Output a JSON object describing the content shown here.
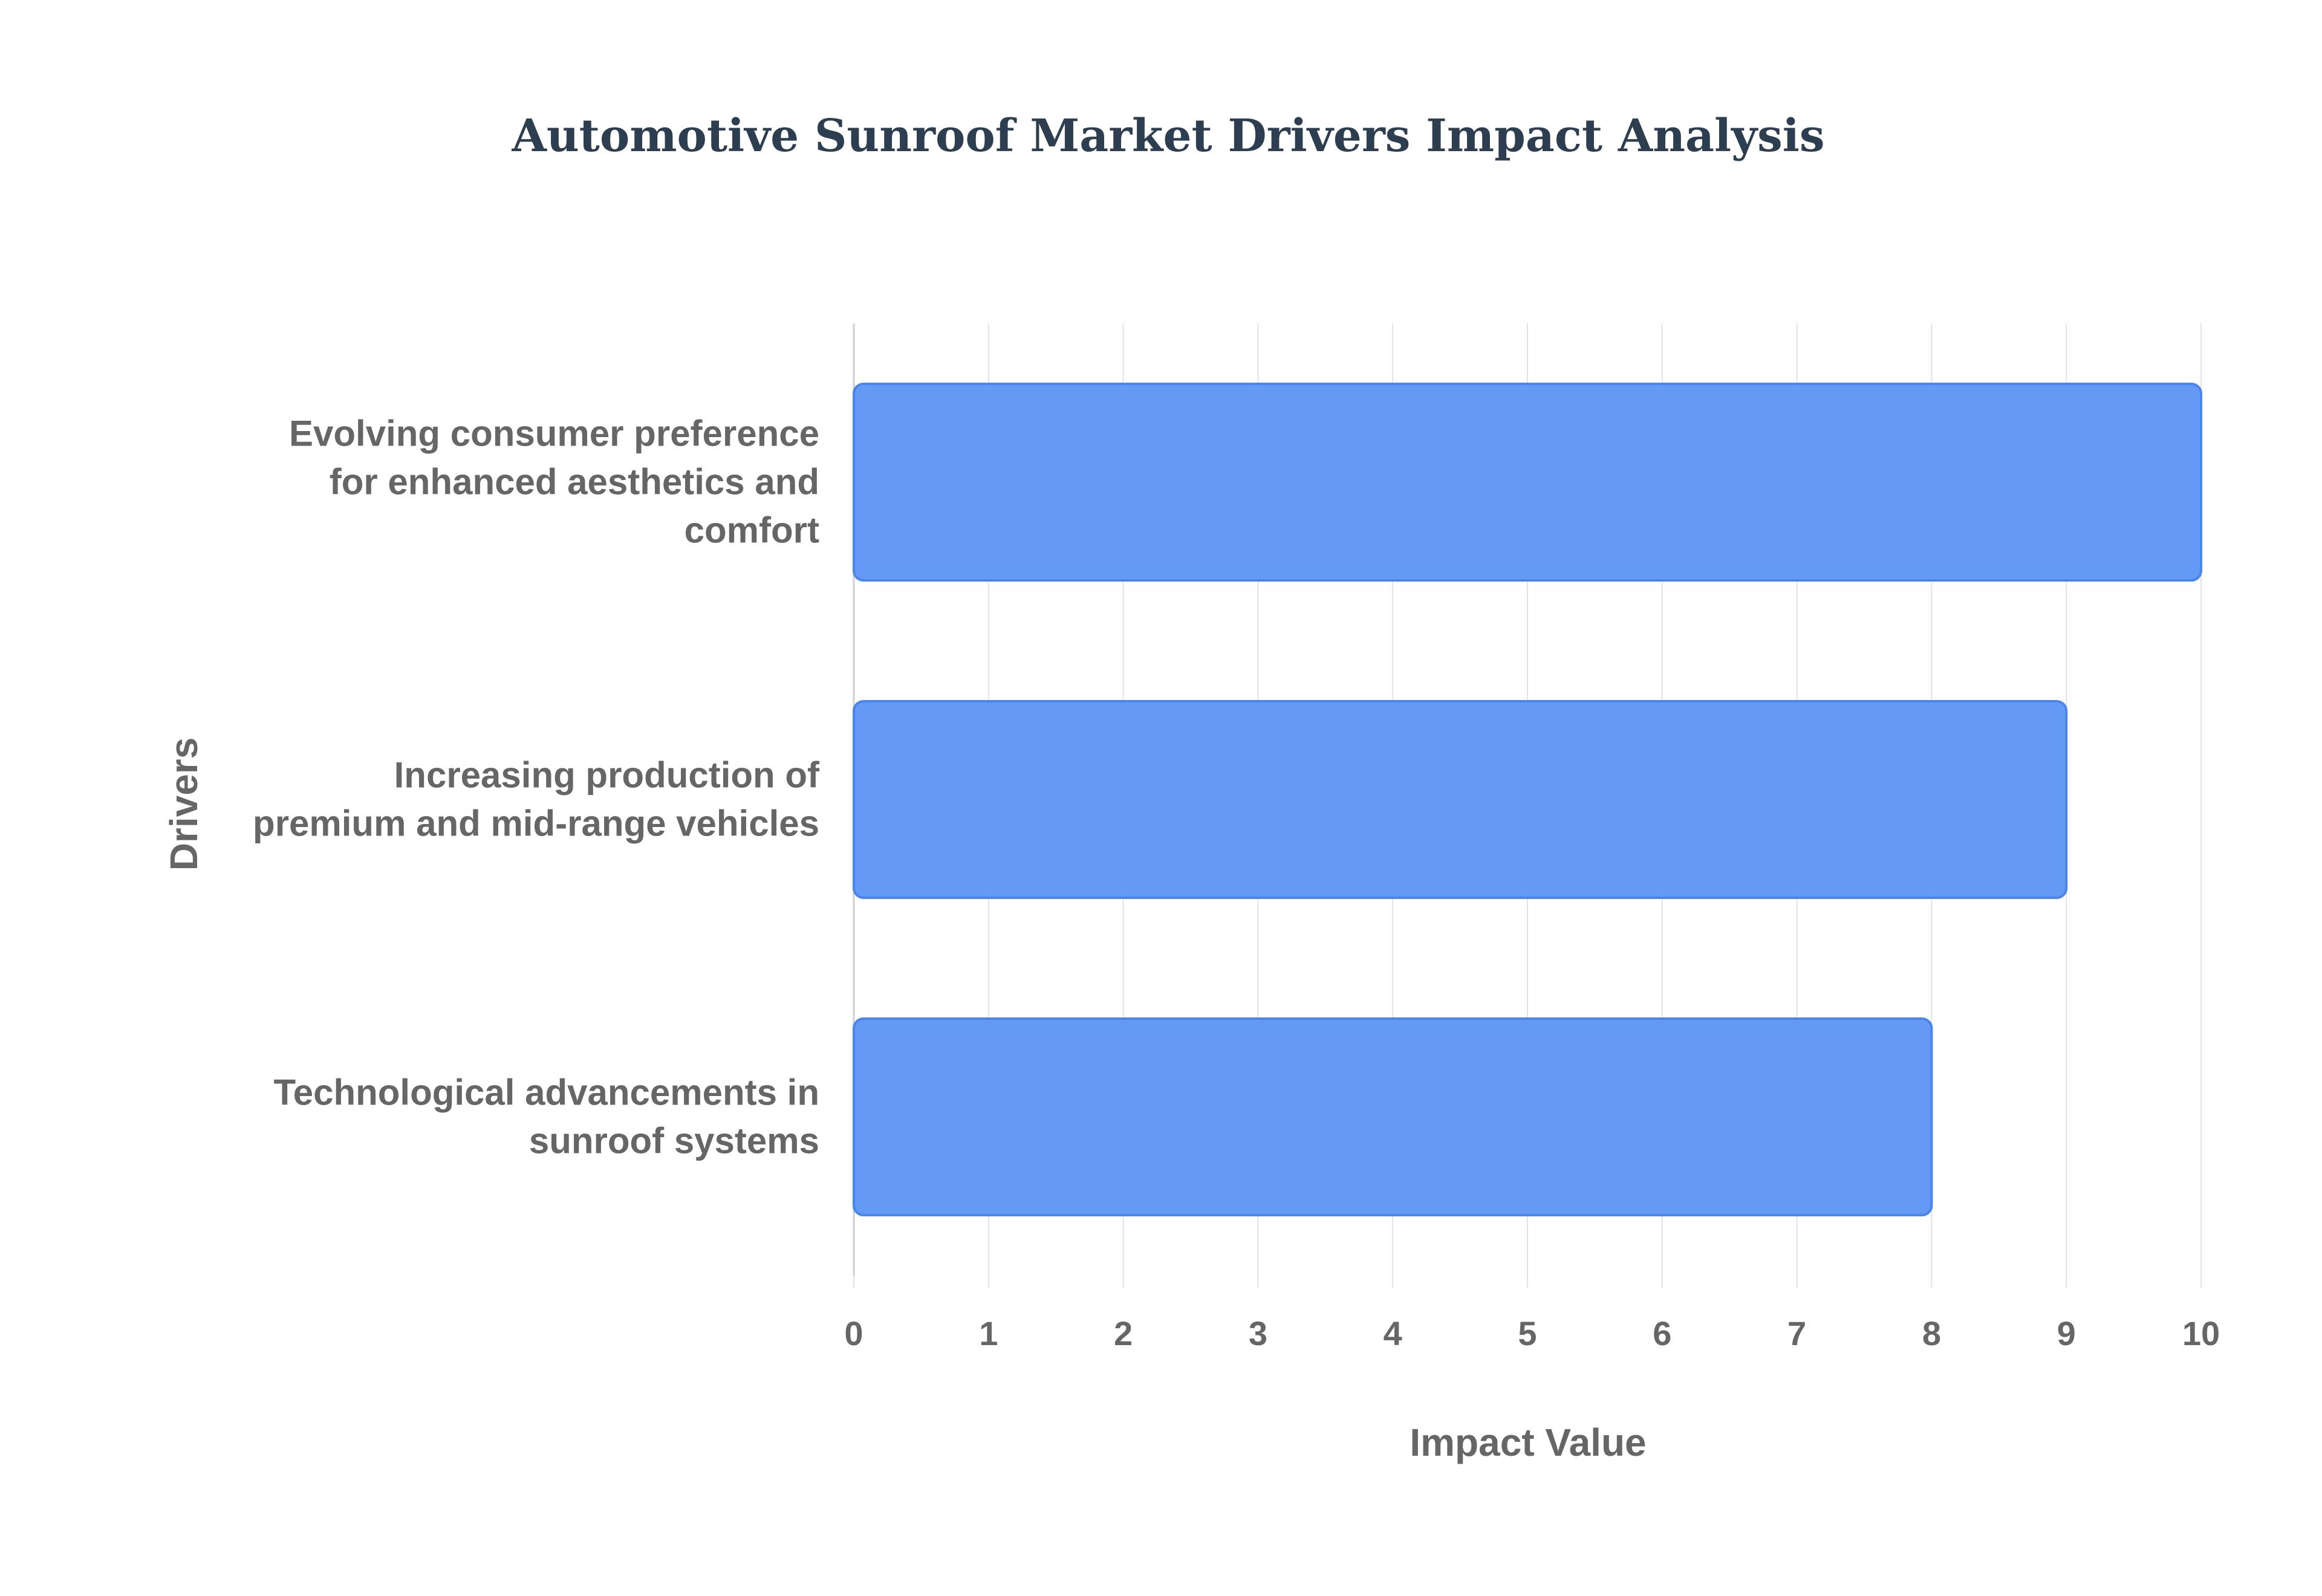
{
  "chart_data": {
    "type": "bar",
    "orientation": "horizontal",
    "title": "Automotive Sunroof Market Drivers Impact Analysis",
    "xlabel": "Impact Value",
    "ylabel": "Drivers",
    "categories": [
      "Evolving consumer preference for enhanced aesthetics and comfort",
      "Increasing production of premium and mid-range vehicles",
      "Technological advancements in sunroof systems"
    ],
    "values": [
      10,
      9,
      8
    ],
    "xlim": [
      0,
      10
    ],
    "xticks": [
      "0",
      "1",
      "2",
      "3",
      "4",
      "5",
      "6",
      "7",
      "8",
      "9",
      "10"
    ],
    "grid": true,
    "legend": "none"
  },
  "colors": {
    "bar_fill": "#6499f5",
    "bar_stroke": "#4a86ea",
    "title": "#2c3e50",
    "axis_text": "#666666",
    "grid": "#e3e3e3",
    "axis_line": "#cfcfcf"
  }
}
